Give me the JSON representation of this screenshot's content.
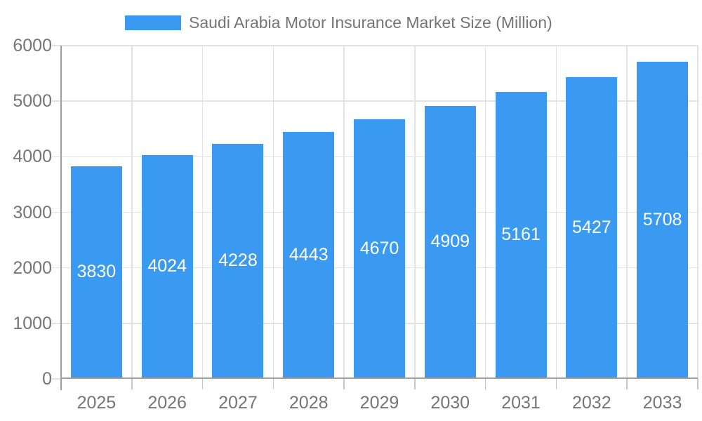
{
  "chart_data": {
    "type": "bar",
    "title": "Saudi Arabia Motor Insurance Market Size (Million)",
    "legend": "Saudi Arabia Motor Insurance Market Size (Million)",
    "legend_position": "top",
    "categories": [
      "2025",
      "2026",
      "2027",
      "2028",
      "2029",
      "2030",
      "2031",
      "2032",
      "2033"
    ],
    "series": [
      {
        "name": "Saudi Arabia Motor Insurance Market Size (Million)",
        "values": [
          3830,
          4024,
          4228,
          4443,
          4670,
          4909,
          5161,
          5427,
          5708
        ]
      }
    ],
    "value_labels": [
      "3830",
      "4024",
      "4228",
      "4443",
      "4670",
      "4909",
      "5161",
      "5427",
      "5708"
    ],
    "xlabel": "",
    "ylabel": "",
    "ylim": [
      0,
      6000
    ],
    "y_ticks": [
      0,
      1000,
      2000,
      3000,
      4000,
      5000,
      6000
    ],
    "grid": true,
    "grid_style": "category-boundaries",
    "bar_color": "#3A99F0",
    "value_label_color": "#FFFFFF",
    "axis_text_color": "#757575",
    "axis_line_color": "#9E9E9E",
    "gridline_color": "#E3E3E3",
    "background_color": "#FFFFFF"
  }
}
